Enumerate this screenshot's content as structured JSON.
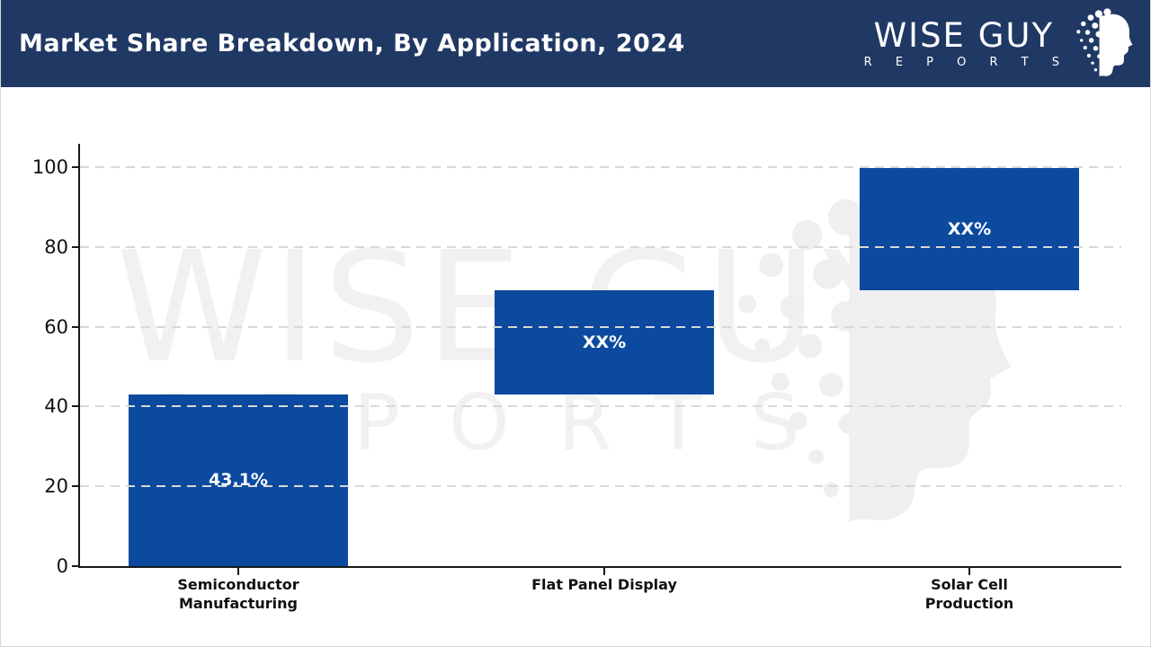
{
  "header": {
    "title": "Market Share Breakdown, By Application, 2024",
    "background_color": "#203864",
    "text_color": "#ffffff",
    "logo": {
      "wordmark": "WISE GUY",
      "subtext": "REPORTS",
      "face_icon": "head-profile-dots-icon"
    }
  },
  "watermark": {
    "line1": "WISE GUY",
    "line2": "REPORTS"
  },
  "chart_data": {
    "type": "bar",
    "subtype": "cumulative-stacked-percentage",
    "title": "Market Share Breakdown, By Application, 2024",
    "categories": [
      "Semiconductor\nManufacturing",
      "Flat Panel Display",
      "Solar Cell\nProduction"
    ],
    "segments": [
      {
        "category": "Semiconductor Manufacturing",
        "label": "43.1%",
        "start": 0,
        "end": 43.1
      },
      {
        "category": "Flat Panel Display",
        "label": "XX%",
        "start": 43.1,
        "end": 69.1
      },
      {
        "category": "Solar Cell Production",
        "label": "XX%",
        "start": 69.1,
        "end": 99.7
      }
    ],
    "yticks": [
      0,
      20,
      40,
      60,
      80,
      100
    ],
    "ylim": [
      0,
      106
    ],
    "grid": "horizontal-dashed",
    "grid_color": "#d8d8d8",
    "bar_color": "#0b4a9f",
    "bar_label_color": "#ffffff",
    "axis_color": "#1a1a1a",
    "xlabel": "",
    "ylabel": "",
    "legend": null
  }
}
